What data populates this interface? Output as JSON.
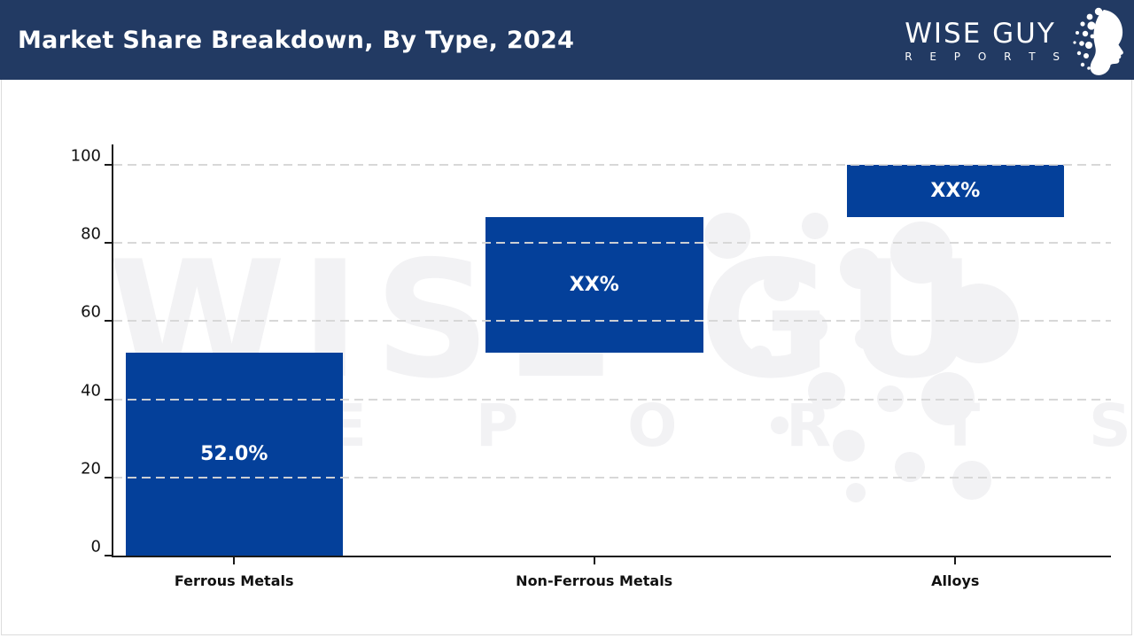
{
  "header": {
    "title": "Market Share Breakdown, By Type, 2024",
    "logo": {
      "line1": "WISE GUY",
      "line2": "R E P O R T S"
    }
  },
  "watermark": {
    "line1": "WISE GU",
    "line2": "R E P O R T S"
  },
  "colors": {
    "header_bg": "#223A63",
    "bar": "#04409A",
    "grid": "#D8D8D8",
    "axis": "#1A1A1A",
    "bar_label": "#FFFFFF",
    "watermark": "#F2F2F4",
    "frame_border": "#DCDCDC"
  },
  "chart_data": {
    "type": "bar",
    "subtype": "waterfall",
    "title": "Market Share Breakdown, By Type, 2024",
    "categories": [
      "Ferrous Metals",
      "Non-Ferrous Metals",
      "Alloys"
    ],
    "bars": [
      {
        "category": "Ferrous Metals",
        "start": 0,
        "end": 52.0,
        "label": "52.0%"
      },
      {
        "category": "Non-Ferrous Metals",
        "start": 52.0,
        "end": 86.6,
        "label": "XX%"
      },
      {
        "category": "Alloys",
        "start": 86.6,
        "end": 100.0,
        "label": "XX%"
      }
    ],
    "yticks": [
      0,
      20,
      40,
      60,
      80,
      100
    ],
    "ylim": [
      0,
      105.2
    ],
    "xlabel": "",
    "ylabel": "",
    "grid": "horizontal-dashed",
    "legend": "none",
    "bar_color": "#04409A",
    "layout": {
      "bar_center_fracs": [
        0.121,
        0.482,
        0.844
      ],
      "bar_width_frac": 0.218
    }
  }
}
